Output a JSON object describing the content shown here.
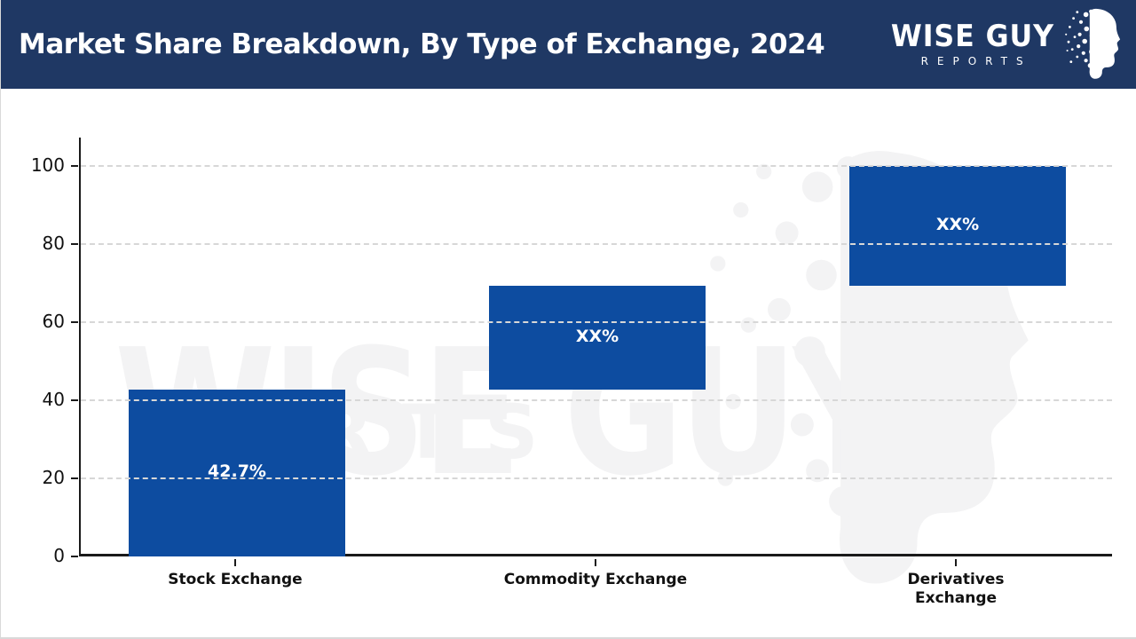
{
  "header": {
    "title": "Market Share Breakdown, By Type of Exchange, 2024",
    "logo": {
      "line1": "WISE GUY",
      "line2": "REPORTS"
    }
  },
  "watermark": {
    "line1": "WISE GUY",
    "line2": "PORTS"
  },
  "colors": {
    "header_background": "#1F3864",
    "bar_fill": "#0D4CA0",
    "bar_label_text": "#ffffff",
    "gridline": "#d7d7d7",
    "axis": "#1a1a1a",
    "watermark": "#f3f3f4"
  },
  "chart_data": {
    "type": "bar",
    "subtype": "floating-cumulative-bars",
    "title": "Market Share Breakdown, By Type of Exchange, 2024",
    "categories": [
      "Stock Exchange",
      "Commodity Exchange",
      "Derivatives\nExchange"
    ],
    "bars": [
      {
        "category": "Stock Exchange",
        "start": 0,
        "end": 42.7,
        "label": "42.7%"
      },
      {
        "category": "Commodity Exchange",
        "start": 42.7,
        "end": 69.3,
        "label": "XX%"
      },
      {
        "category": "Derivatives Exchange",
        "start": 69.3,
        "end": 100,
        "label": "XX%"
      }
    ],
    "xlabel": "",
    "ylabel": "",
    "yticks": [
      0,
      20,
      40,
      60,
      80,
      100
    ],
    "ylim": [
      0,
      107.3
    ],
    "grid": "horizontal dashed, drawn over bars",
    "legend": "none"
  }
}
